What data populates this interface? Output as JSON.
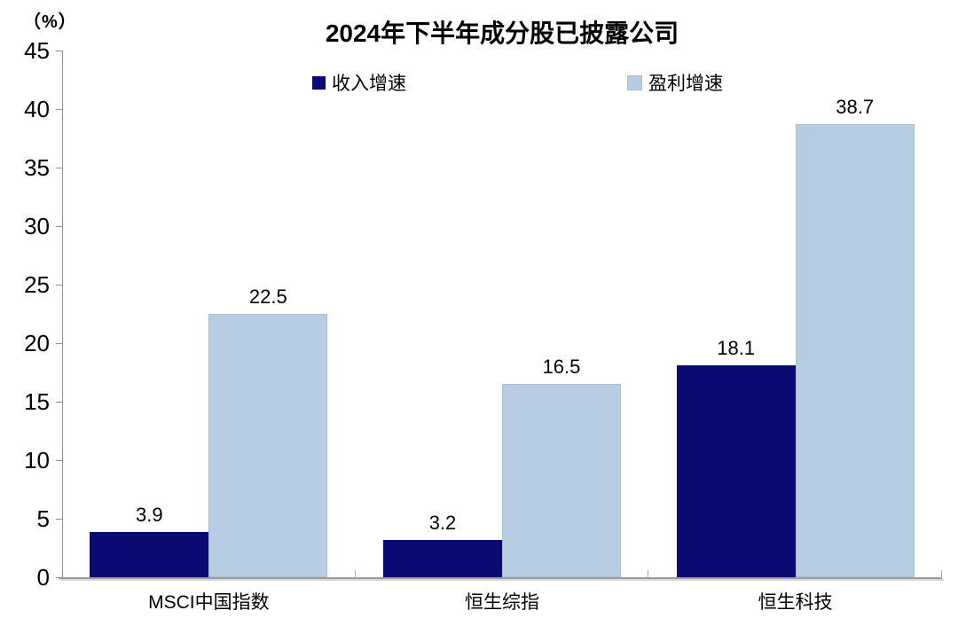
{
  "chart_data": {
    "type": "bar",
    "title": "2024年下半年成分股已披露公司",
    "unit_label": "（%）",
    "categories": [
      "MSCI中国指数",
      "恒生综指",
      "恒生科技"
    ],
    "series": [
      {
        "name": "收入增速",
        "color": "#0a0a73",
        "values": [
          3.9,
          3.2,
          18.1
        ]
      },
      {
        "name": "盈利增速",
        "color": "#b8cce4",
        "values": [
          22.5,
          16.5,
          38.7
        ]
      }
    ],
    "ylim": [
      0,
      45
    ],
    "yticks": [
      0,
      5,
      10,
      15,
      20,
      25,
      30,
      35,
      40,
      45
    ],
    "grid": false,
    "legend_position": "top-center",
    "axis_color": "#8e8ea0",
    "text_color": "#000000",
    "background_color": "#ffffff",
    "light_bar_border_color": "#a9bed9"
  }
}
